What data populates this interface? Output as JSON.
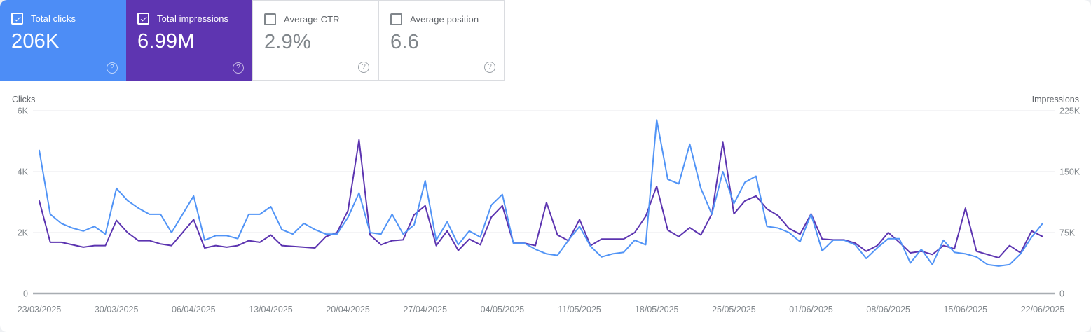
{
  "cards": [
    {
      "label": "Total clicks",
      "value": "206K",
      "checked": true,
      "bg": "#4d8df6",
      "text_color": "#ffffff"
    },
    {
      "label": "Total impressions",
      "value": "6.99M",
      "checked": true,
      "bg": "#5e35b1",
      "text_color": "#ffffff"
    },
    {
      "label": "Average CTR",
      "value": "2.9%",
      "checked": false,
      "bg": "#ffffff",
      "text_color": "#80868b"
    },
    {
      "label": "Average position",
      "value": "6.6",
      "checked": false,
      "bg": "#ffffff",
      "text_color": "#80868b"
    }
  ],
  "help_icon_glyph": "?",
  "chart_data": {
    "type": "line",
    "x_start": "23/03/2025",
    "x_end": "22/06/2025",
    "x_cadence": "daily",
    "x_tick_labels": [
      "23/03/2025",
      "30/03/2025",
      "06/04/2025",
      "13/04/2025",
      "20/04/2025",
      "27/04/2025",
      "04/05/2025",
      "11/05/2025",
      "18/05/2025",
      "25/05/2025",
      "01/06/2025",
      "08/06/2025",
      "15/06/2025",
      "22/06/2025"
    ],
    "left_axis": {
      "label": "Clicks",
      "min": 0,
      "max": 6000,
      "tick_labels": [
        "6K",
        "4K",
        "2K",
        "0"
      ]
    },
    "right_axis": {
      "label": "Impressions",
      "min": 0,
      "max": 225000,
      "tick_labels": [
        "225K",
        "150K",
        "75K",
        "0"
      ]
    },
    "grid": true,
    "legend_position": "none",
    "grid_color": "#e8eaed",
    "axis_line_color": "#a8adb2",
    "series": [
      {
        "name": "Clicks",
        "axis": "left",
        "color": "#5194f6",
        "values": [
          4700,
          2600,
          2300,
          2150,
          2050,
          2200,
          1950,
          3450,
          3050,
          2800,
          2600,
          2600,
          2000,
          2600,
          3200,
          1750,
          1900,
          1900,
          1800,
          2600,
          2600,
          2850,
          2100,
          1950,
          2300,
          2100,
          1950,
          1950,
          2500,
          3300,
          2000,
          1950,
          2600,
          1950,
          2250,
          3700,
          1750,
          2350,
          1600,
          2050,
          1850,
          2900,
          3250,
          1650,
          1650,
          1450,
          1300,
          1250,
          1750,
          2200,
          1550,
          1200,
          1300,
          1350,
          1750,
          1600,
          5700,
          3750,
          3600,
          4900,
          3450,
          2600,
          4000,
          2950,
          3650,
          3850,
          2200,
          2150,
          2000,
          1700,
          2600,
          1400,
          1750,
          1750,
          1600,
          1150,
          1500,
          1800,
          1800,
          1000,
          1450,
          950,
          1750,
          1350,
          1300,
          1200,
          950,
          900,
          950,
          1300,
          1850,
          2300
        ]
      },
      {
        "name": "Impressions",
        "axis": "right",
        "color": "#5c34b0",
        "values": [
          114000,
          63000,
          63000,
          60000,
          57000,
          59000,
          59000,
          90000,
          75000,
          65000,
          65000,
          61000,
          59000,
          75000,
          91000,
          56000,
          59000,
          57000,
          59000,
          65000,
          63000,
          72000,
          59000,
          58000,
          57000,
          56000,
          70000,
          75000,
          102000,
          189000,
          72000,
          60000,
          65000,
          66000,
          97000,
          108000,
          59000,
          77000,
          53000,
          67000,
          60000,
          94000,
          108000,
          62000,
          62000,
          59000,
          112000,
          72000,
          65000,
          91000,
          59000,
          67000,
          67000,
          67000,
          75000,
          95000,
          132000,
          78000,
          70000,
          81000,
          72000,
          98000,
          186000,
          98000,
          114000,
          120000,
          104000,
          96000,
          80000,
          73000,
          98000,
          67000,
          66000,
          66000,
          62000,
          52000,
          59000,
          75000,
          63000,
          50000,
          52000,
          48000,
          59000,
          55000,
          105000,
          52000,
          48000,
          44000,
          59000,
          50000,
          77000,
          70000
        ]
      }
    ]
  }
}
